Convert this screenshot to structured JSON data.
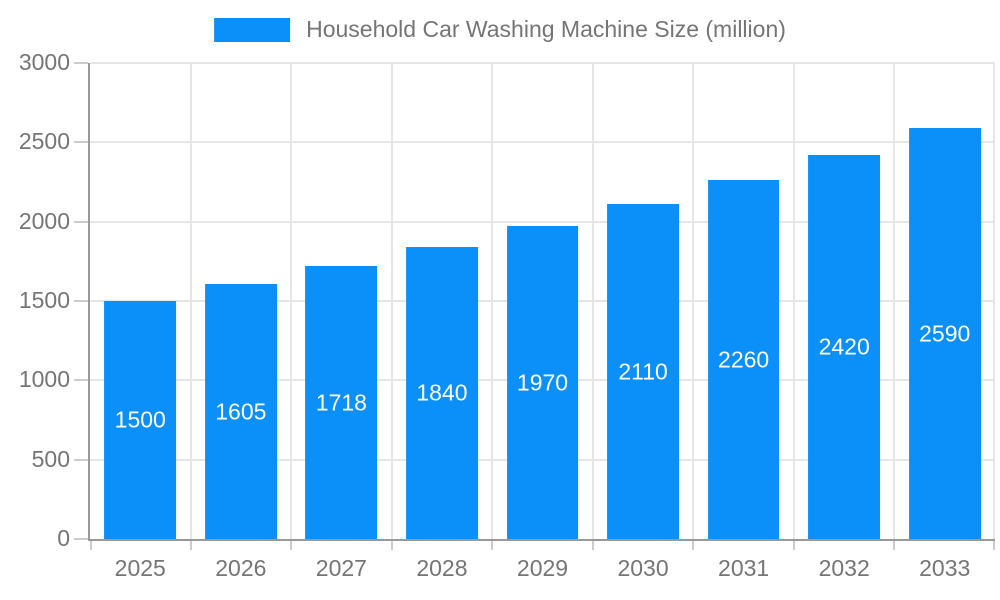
{
  "chart_data": {
    "type": "bar",
    "title": "Household Car Washing Machine Size (million)",
    "legend": [
      "Household Car Washing Machine Size (million)"
    ],
    "legend_position": "top-center",
    "categories": [
      "2025",
      "2026",
      "2027",
      "2028",
      "2029",
      "2030",
      "2031",
      "2032",
      "2033"
    ],
    "values": [
      1500,
      1605,
      1718,
      1840,
      1970,
      2110,
      2260,
      2420,
      2590
    ],
    "xlabel": "",
    "ylabel": "",
    "ylim": [
      0,
      3000
    ],
    "yticks": [
      0,
      500,
      1000,
      1500,
      2000,
      2500,
      3000
    ],
    "grid": true,
    "bar_color": "#0a90f8",
    "bar_label_color": "#ffffff",
    "axis_text_color": "#757575"
  }
}
